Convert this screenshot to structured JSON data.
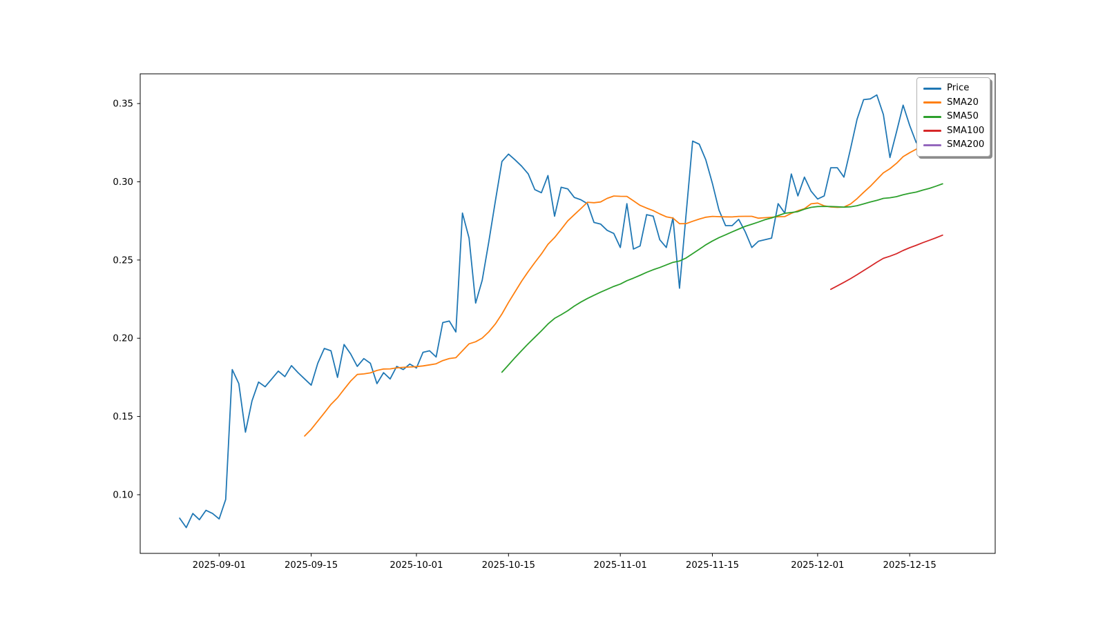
{
  "chart_data": {
    "type": "line",
    "title": "",
    "xlabel": "",
    "ylabel": "",
    "grid": false,
    "legend_position": "upper right",
    "x_axis": {
      "tick_labels": [
        "2025-09-01",
        "2025-09-15",
        "2025-10-01",
        "2025-10-15",
        "2025-11-01",
        "2025-11-15",
        "2025-12-01",
        "2025-12-15"
      ],
      "xlim": [
        "2025-08-20",
        "2025-12-28"
      ]
    },
    "y_axis": {
      "ticks": [
        0.1,
        0.15,
        0.2,
        0.25,
        0.3,
        0.35
      ],
      "ylim": [
        0.0625,
        0.369
      ],
      "tick_format_decimals": 2
    },
    "start_date": "2025-08-26",
    "frequency": "daily",
    "series": [
      {
        "name": "Price",
        "color": "#1f77b4",
        "kind": "price",
        "values": [
          0.085,
          0.079,
          0.088,
          0.084,
          0.09,
          0.088,
          0.0845,
          0.097,
          0.18,
          0.171,
          0.14,
          0.16,
          0.172,
          0.169,
          0.174,
          0.179,
          0.1755,
          0.1825,
          0.178,
          0.174,
          0.17,
          0.184,
          0.1935,
          0.192,
          0.175,
          0.196,
          0.19,
          0.182,
          0.187,
          0.184,
          0.171,
          0.178,
          0.174,
          0.182,
          0.18,
          0.1835,
          0.181,
          0.191,
          0.192,
          0.188,
          0.21,
          0.211,
          0.204,
          0.28,
          0.264,
          0.2225,
          0.237,
          0.2615,
          0.2875,
          0.313,
          0.3177,
          0.314,
          0.31,
          0.305,
          0.295,
          0.293,
          0.304,
          0.278,
          0.2965,
          0.2955,
          0.29,
          0.2885,
          0.286,
          0.274,
          0.273,
          0.269,
          0.267,
          0.258,
          0.286,
          0.257,
          0.259,
          0.279,
          0.278,
          0.263,
          0.258,
          0.277,
          0.232,
          0.279,
          0.326,
          0.324,
          0.314,
          0.299,
          0.282,
          0.272,
          0.272,
          0.276,
          0.268,
          0.258,
          0.262,
          0.263,
          0.264,
          0.286,
          0.28,
          0.305,
          0.291,
          0.303,
          0.294,
          0.289,
          0.291,
          0.309,
          0.309,
          0.303,
          0.321,
          0.34,
          0.3525,
          0.353,
          0.3555,
          0.343,
          0.3155,
          0.332,
          0.349,
          0.336,
          0.325,
          0.336,
          0.33,
          0.338,
          0.342
        ]
      },
      {
        "name": "SMA20",
        "color": "#ff7f0e",
        "kind": "sma",
        "window": 20
      },
      {
        "name": "SMA50",
        "color": "#2ca02c",
        "kind": "sma",
        "window": 50
      },
      {
        "name": "SMA100",
        "color": "#d62728",
        "kind": "sma",
        "window": 100
      },
      {
        "name": "SMA200",
        "color": "#9467bd",
        "kind": "sma",
        "window": 200
      }
    ]
  }
}
